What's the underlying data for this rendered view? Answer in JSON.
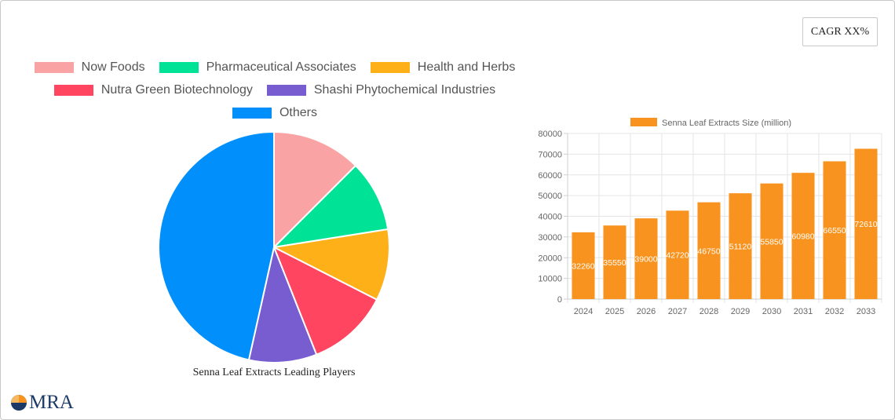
{
  "cagr_label": "CAGR XX%",
  "logo_text": "MRA",
  "colors": {
    "pie": [
      "#f9a3a4",
      "#00e396",
      "#feb019",
      "#ff4560",
      "#775dd0",
      "#008ffb"
    ],
    "bar": "#f7931e"
  },
  "chart_data": [
    {
      "type": "pie",
      "title": "Senna Leaf Extracts Leading Players",
      "labels": [
        "Now Foods",
        "Pharmaceutical Associates",
        "Health and Herbs",
        "Nutra Green Biotechnology",
        "Shashi Phytochemical Industries",
        "Others"
      ],
      "values": [
        12.5,
        10,
        10,
        11.5,
        9.5,
        46.5
      ],
      "legend_position": "top"
    },
    {
      "type": "bar",
      "series": [
        {
          "name": "Senna Leaf Extracts Size (million)",
          "values": [
            32260,
            35550,
            39000,
            42720,
            46750,
            51120,
            55850,
            60980,
            66550,
            72610
          ]
        }
      ],
      "categories": [
        "2024",
        "2025",
        "2026",
        "2027",
        "2028",
        "2029",
        "2030",
        "2031",
        "2032",
        "2033"
      ],
      "ylim": [
        0,
        80000
      ],
      "yticks": [
        "0",
        "10000",
        "20000",
        "30000",
        "40000",
        "50000",
        "60000",
        "70000",
        "80000"
      ],
      "data_labels": [
        "32260",
        "35550",
        "39000",
        "42720",
        "46750",
        "51120",
        "55850",
        "60980",
        "66550",
        "72610"
      ],
      "grid": true,
      "legend_position": "top"
    }
  ]
}
